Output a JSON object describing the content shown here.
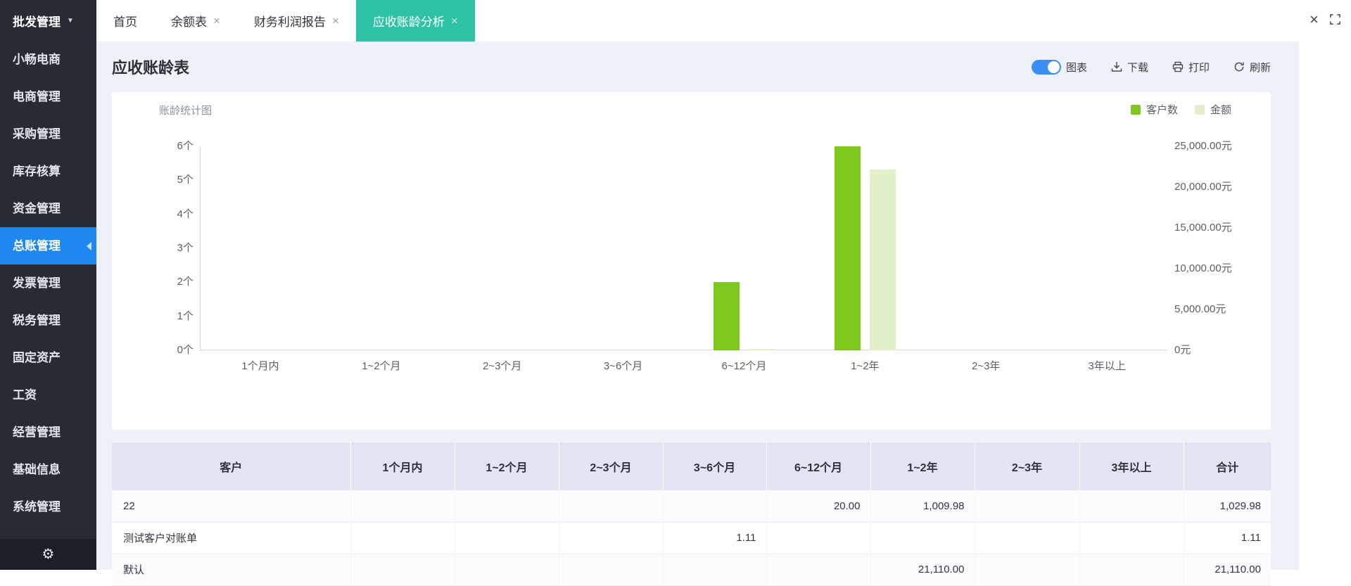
{
  "icons": {
    "caret_down": "▼",
    "gear": "⚙",
    "close": "×",
    "tab_close": "×"
  },
  "colors": {
    "sidebar_active": "#1e87f0",
    "active_tab": "#2ec3a5",
    "toggle": "#3a8ef6",
    "bar_customers": "#7ec81e",
    "bar_amount": "#e2f0c8"
  },
  "sidebar": {
    "top_label": "批发管理",
    "items": [
      {
        "label": "小畅电商",
        "active": false
      },
      {
        "label": "电商管理",
        "active": false
      },
      {
        "label": "采购管理",
        "active": false
      },
      {
        "label": "库存核算",
        "active": false
      },
      {
        "label": "资金管理",
        "active": false
      },
      {
        "label": "总账管理",
        "active": true
      },
      {
        "label": "发票管理",
        "active": false
      },
      {
        "label": "税务管理",
        "active": false
      },
      {
        "label": "固定资产",
        "active": false
      },
      {
        "label": "工资",
        "active": false
      },
      {
        "label": "经营管理",
        "active": false
      },
      {
        "label": "基础信息",
        "active": false
      },
      {
        "label": "系统管理",
        "active": false
      }
    ]
  },
  "tabs": [
    {
      "label": "首页",
      "closable": false,
      "active": false
    },
    {
      "label": "余额表",
      "closable": true,
      "active": false
    },
    {
      "label": "财务利润报告",
      "closable": true,
      "active": false
    },
    {
      "label": "应收账龄分析",
      "closable": true,
      "active": true
    }
  ],
  "page": {
    "title": "应收账龄表",
    "toolbar": {
      "chart_toggle_label": "图表",
      "download_label": "下载",
      "print_label": "打印",
      "refresh_label": "刷新"
    }
  },
  "chart_data": {
    "type": "bar",
    "title": "账龄统计图",
    "legend_position": "top-right",
    "grid": false,
    "categories": [
      "1个月内",
      "1~2个月",
      "2~3个月",
      "3~6个月",
      "6~12个月",
      "1~2年",
      "2~3年",
      "3年以上"
    ],
    "series": [
      {
        "name": "客户数",
        "axis": "left",
        "color": "#7ec81e",
        "values": [
          0,
          0,
          0,
          0,
          2,
          6,
          0,
          0
        ]
      },
      {
        "name": "金额",
        "axis": "right",
        "color": "#e2f0c8",
        "values": [
          0,
          0,
          0,
          1.11,
          20,
          22120,
          0,
          0
        ]
      }
    ],
    "left_axis": {
      "unit": "个",
      "min": 0,
      "max": 6,
      "step": 1
    },
    "right_axis": {
      "unit": "元",
      "min": 0,
      "max": 25000,
      "step": 5000,
      "labels": [
        "0元",
        "5,000.00元",
        "10,000.00元",
        "15,000.00元",
        "20,000.00元",
        "25,000.00元"
      ]
    }
  },
  "table": {
    "headers": [
      "客户",
      "1个月内",
      "1~2个月",
      "2~3个月",
      "3~6个月",
      "6~12个月",
      "1~2年",
      "2~3年",
      "3年以上",
      "合计"
    ],
    "rows": [
      [
        "22",
        "",
        "",
        "",
        "",
        "20.00",
        "1,009.98",
        "",
        "",
        "1,029.98"
      ],
      [
        "测试客户对账单",
        "",
        "",
        "",
        "1.11",
        "",
        "",
        "",
        "",
        "1.11"
      ],
      [
        "默认",
        "",
        "",
        "",
        "",
        "",
        "21,110.00",
        "",
        "",
        "21,110.00"
      ]
    ]
  }
}
